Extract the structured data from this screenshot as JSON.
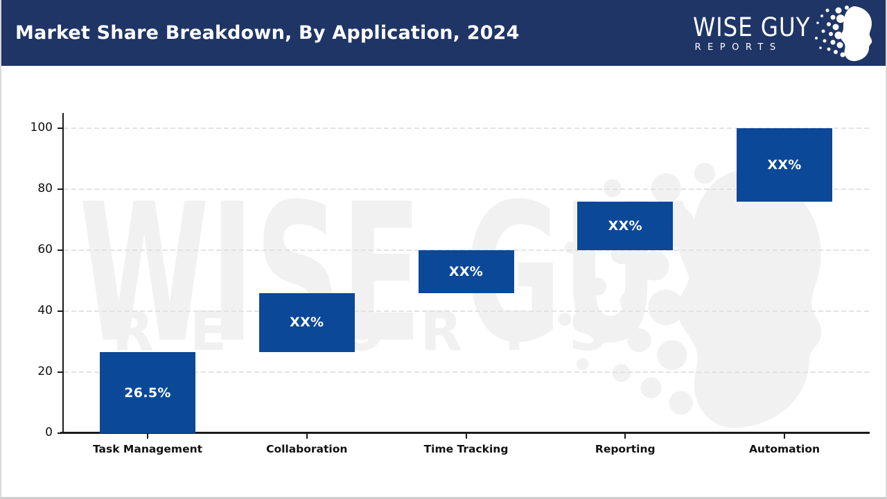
{
  "header": {
    "title": "Market Share Breakdown, By Application, 2024",
    "logo": {
      "line1": "WISE GUY",
      "line2": "REPORTS"
    }
  },
  "watermark": {
    "line1": "WISE GUY",
    "line2": "REPORTS"
  },
  "colors": {
    "header_bg": "#1f3566",
    "bar_fill": "#0b4898",
    "bar_label_text": "#ffffff",
    "axis": "#1a1a1a",
    "gridline": "#e2e2e2",
    "tick_text": "#111111",
    "watermark_gray": "#f1f1f1",
    "background": "#ffffff"
  },
  "chart_data": {
    "type": "bar",
    "subtype": "waterfall",
    "title": "Market Share Breakdown, By Application, 2024",
    "categories": [
      "Task Management",
      "Collaboration",
      "Time Tracking",
      "Reporting",
      "Automation"
    ],
    "series": [
      {
        "name": "Market Share",
        "segments": [
          {
            "category": "Task Management",
            "start": 0,
            "end": 26.5,
            "label": "26.5%"
          },
          {
            "category": "Collaboration",
            "start": 26.5,
            "end": 46,
            "label": "XX%"
          },
          {
            "category": "Time Tracking",
            "start": 46,
            "end": 60,
            "label": "XX%"
          },
          {
            "category": "Reporting",
            "start": 60,
            "end": 76,
            "label": "XX%"
          },
          {
            "category": "Automation",
            "start": 76,
            "end": 100,
            "label": "XX%"
          }
        ]
      }
    ],
    "xlabel": "",
    "ylabel": "",
    "yticks": [
      0,
      20,
      40,
      60,
      80,
      100
    ],
    "ylim": [
      0,
      105
    ],
    "grid": "horizontal-dashed",
    "legend": "none"
  }
}
